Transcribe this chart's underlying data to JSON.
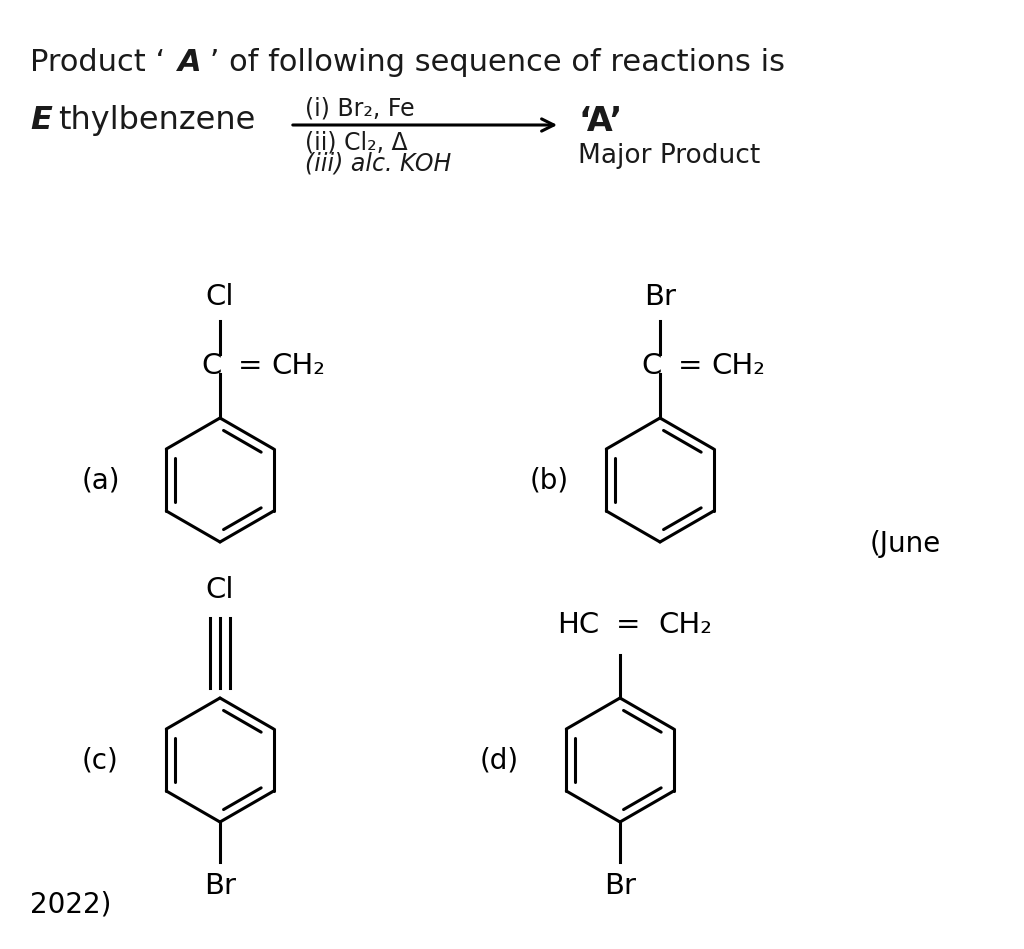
{
  "bg_color": "#ffffff",
  "text_color": "#1a1a1a",
  "title_fs": 22,
  "label_fs": 19,
  "option_fs": 20,
  "chem_fs": 21,
  "small_fs": 16,
  "arrow_above": "(i) Br₂, Fe",
  "arrow_below1": "(ii) Cl₂, Δ",
  "arrow_below2": "(iii) alc. KOH",
  "june": "(June",
  "footer": "2022)"
}
